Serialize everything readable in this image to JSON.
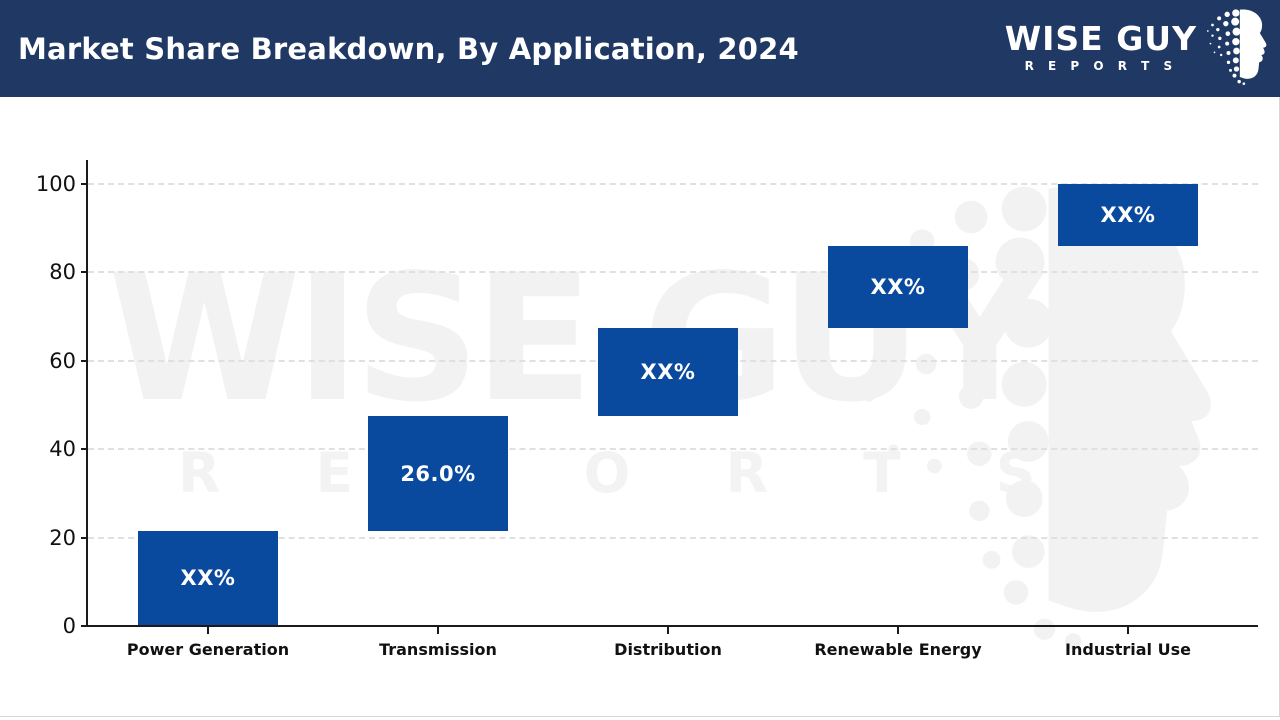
{
  "header": {
    "title": "Market Share Breakdown, By Application, 2024",
    "background": "#1F3864",
    "logo": {
      "name": "WISE GUY",
      "tagline": "R E P O R T S",
      "icon": "dotted-head-icon"
    }
  },
  "watermark": {
    "name": "WISE GUY",
    "tagline": "R E P O R T S",
    "icon": "dotted-head-icon"
  },
  "chart_data": {
    "type": "bar",
    "subtype": "waterfall",
    "title": "Market Share Breakdown, By Application, 2024",
    "categories": [
      "Power Generation",
      "Transmission",
      "Distribution",
      "Renewable Energy",
      "Industrial Use"
    ],
    "series": [
      {
        "name": "Market share (%)",
        "segments": [
          {
            "category": "Power Generation",
            "start": 0,
            "end": 21.5,
            "label": "XX%"
          },
          {
            "category": "Transmission",
            "start": 21.5,
            "end": 47.5,
            "label": "26.0%"
          },
          {
            "category": "Distribution",
            "start": 47.5,
            "end": 67.5,
            "label": "XX%"
          },
          {
            "category": "Renewable Energy",
            "start": 67.5,
            "end": 86,
            "label": "XX%"
          },
          {
            "category": "Industrial Use",
            "start": 86,
            "end": 100,
            "label": "XX%"
          }
        ]
      }
    ],
    "xlabel": "",
    "ylabel": "",
    "ylim": [
      0,
      105
    ],
    "yticks": [
      0,
      20,
      40,
      60,
      80,
      100
    ],
    "grid": "horizontal-dashed",
    "legend": "none",
    "bar_color": "#0A4A9E",
    "bar_label_color": "#FFFFFF",
    "axis_color": "#1a1a1a"
  }
}
